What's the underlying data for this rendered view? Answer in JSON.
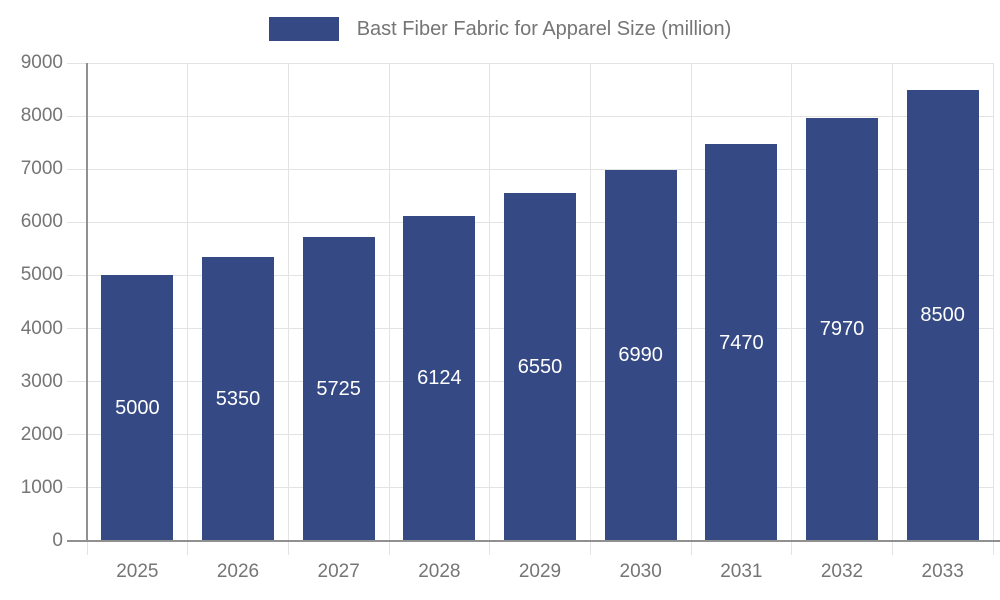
{
  "legend": {
    "label": "Bast Fiber Fabric for Apparel Size (million)",
    "swatch_color": "#354984"
  },
  "chart_data": {
    "type": "bar",
    "title": "Bast Fiber Fabric for Apparel Size (million)",
    "categories": [
      "2025",
      "2026",
      "2027",
      "2028",
      "2029",
      "2030",
      "2031",
      "2032",
      "2033"
    ],
    "series": [
      {
        "name": "Bast Fiber Fabric for Apparel Size (million)",
        "values": [
          5000,
          5350,
          5725,
          6124,
          6550,
          6990,
          7470,
          7970,
          8500
        ]
      }
    ],
    "value_labels_visible": true,
    "xlabel": "",
    "ylabel": "",
    "ylim": [
      0,
      9000
    ],
    "yticks": [
      0,
      1000,
      2000,
      3000,
      4000,
      5000,
      6000,
      7000,
      8000,
      9000
    ],
    "grid": true,
    "legend_position": "top",
    "colors": {
      "bar": "#354984",
      "grid": "#E3E3E3",
      "axis": "#909090",
      "tick_label": "#757575",
      "value_label": "#FFFFFF",
      "background": "#FFFFFF"
    }
  }
}
